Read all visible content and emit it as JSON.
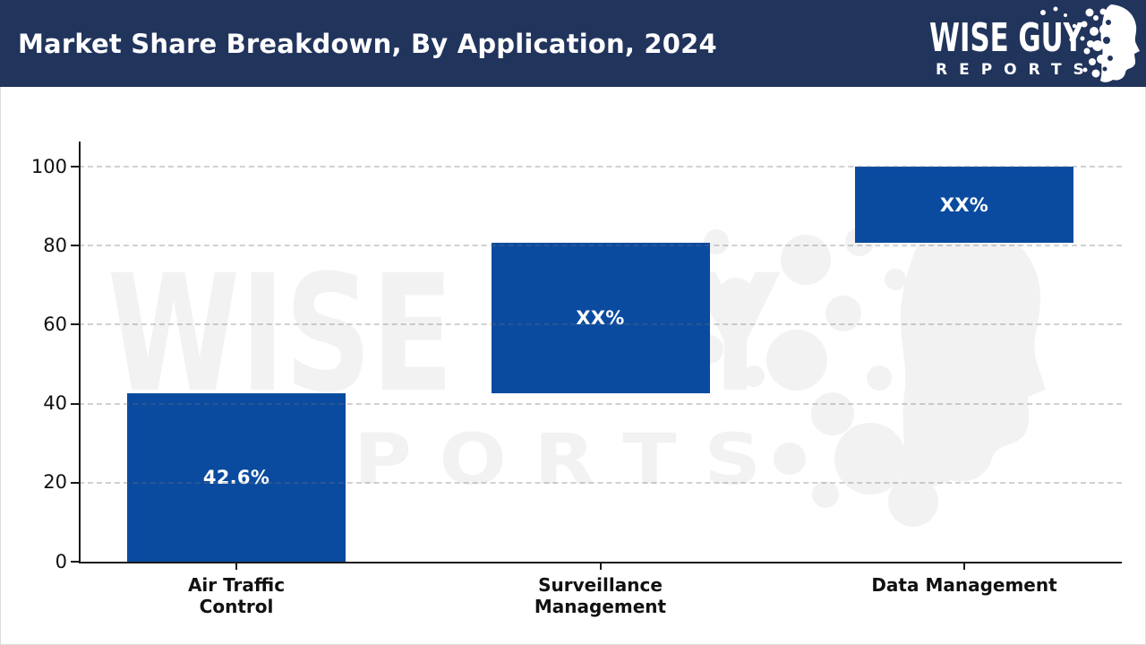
{
  "header": {
    "title": "Market Share Breakdown, By Application, 2024",
    "bg_color": "#21345c",
    "logo": {
      "line1": "WISE GUY",
      "line2": "REPORTS"
    }
  },
  "watermark": {
    "line1": "WISE GUY",
    "line2": "R E P O R T S"
  },
  "chart_data": {
    "type": "bar",
    "subtype": "stacked-range-segments (each bar floats from previous cumulative value)",
    "title": "Market Share Breakdown, By Application, 2024",
    "xlabel": "",
    "ylabel": "",
    "ylim": [
      0,
      100
    ],
    "yticks": [
      0,
      20,
      40,
      60,
      80,
      100
    ],
    "grid": "horizontal dashed, drawn over bars",
    "legend": "none",
    "bar_color": "#0a4ba0",
    "label_color": "#ffffff",
    "categories": [
      "Air Traffic\nControl",
      "Surveillance\nManagement",
      "Data Management"
    ],
    "segments": [
      {
        "category": "Air Traffic Control",
        "start": 0,
        "end": 42.6,
        "label": "42.6%"
      },
      {
        "category": "Surveillance Management",
        "start": 42.6,
        "end": 80.7,
        "label": "XX%"
      },
      {
        "category": "Data Management",
        "start": 80.7,
        "end": 100,
        "label": "XX%"
      }
    ]
  }
}
